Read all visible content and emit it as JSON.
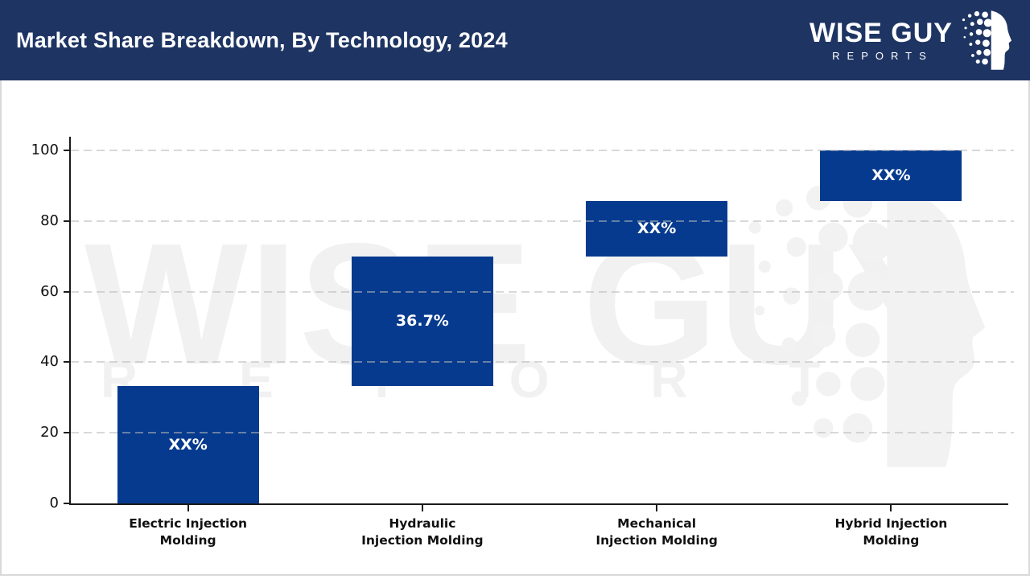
{
  "header": {
    "title": "Market Share Breakdown, By Technology, 2024",
    "brand": {
      "line1": "WISE GUY",
      "line2": "REPORTS"
    }
  },
  "watermark": {
    "line1": "WISE GUY",
    "line2": "R E P O R T S"
  },
  "colors": {
    "header_bg": "#1E3563",
    "bar": "#063A8E",
    "bar_label_text": "#FFFFFF",
    "axis": "#1A1A1A",
    "gridline": "#BDBDBD",
    "watermark": "#F1F1F1",
    "frame_border": "#D9D9D9",
    "tick_text": "#111111"
  },
  "chart_data": {
    "type": "bar",
    "subtype": "waterfall",
    "title": "Market Share Breakdown, By Technology, 2024",
    "xlabel": "",
    "ylabel": "",
    "ylim": [
      0,
      105
    ],
    "yticks": [
      0,
      20,
      40,
      60,
      80,
      100
    ],
    "grid": "dashed horizontal, drawn over bars",
    "legend": "none",
    "categories": [
      "Electric Injection\nMolding",
      "Hydraulic\nInjection Molding",
      "Mechanical\nInjection Molding",
      "Hybrid Injection\nMolding"
    ],
    "segments": [
      {
        "category": "Electric Injection Molding",
        "start": 0,
        "end": 33.3,
        "label": "XX%"
      },
      {
        "category": "Hydraulic Injection Molding",
        "start": 33.3,
        "end": 70,
        "label": "36.7%"
      },
      {
        "category": "Mechanical Injection Molding",
        "start": 70,
        "end": 85.7,
        "label": "XX%"
      },
      {
        "category": "Hybrid Injection Molding",
        "start": 85.7,
        "end": 100,
        "label": "XX%"
      }
    ]
  }
}
